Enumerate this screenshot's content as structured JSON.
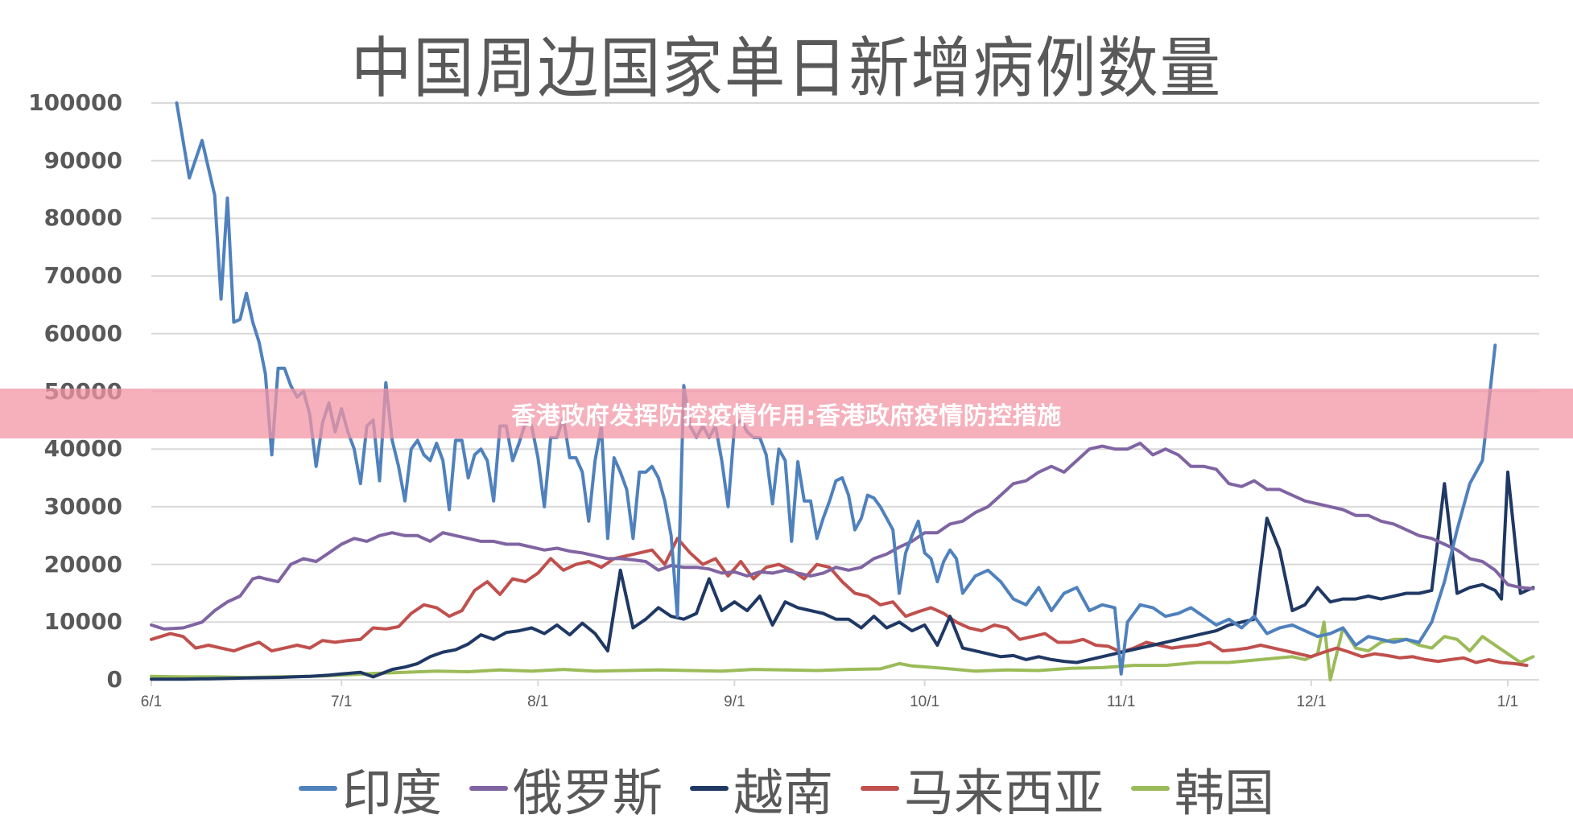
{
  "banner": {
    "text": "香港政府发挥防控疫情作用:香港政府疫情防控措施"
  },
  "chart_data": {
    "type": "line",
    "title": "中国周边国家单日新增病例数量",
    "xlabel": "",
    "ylabel": "",
    "ylim": [
      0,
      100000
    ],
    "yticks": [
      "0",
      "10000",
      "20000",
      "30000",
      "40000",
      "50000",
      "60000",
      "70000",
      "80000",
      "90000",
      "100000"
    ],
    "xticks": [
      "6/1",
      "7/1",
      "8/1",
      "9/1",
      "10/1",
      "11/1",
      "12/1",
      "1/1"
    ],
    "xtick_days": [
      0,
      30,
      61,
      92,
      122,
      153,
      183,
      214
    ],
    "grid": true,
    "legend_position": "bottom",
    "series": [
      {
        "name": "印度",
        "color": "#4f81bd",
        "days": [
          4,
          6,
          8,
          10,
          11,
          12,
          13,
          14,
          15,
          16,
          17,
          18,
          19,
          20,
          21,
          22,
          23,
          24,
          25,
          26,
          27,
          28,
          29,
          30,
          31,
          32,
          33,
          34,
          35,
          36,
          37,
          38,
          39,
          40,
          41,
          42,
          43,
          44,
          45,
          46,
          47,
          48,
          49,
          50,
          51,
          52,
          53,
          54,
          55,
          56,
          57,
          58,
          59,
          60,
          61,
          62,
          63,
          64,
          65,
          66,
          67,
          68,
          69,
          70,
          71,
          72,
          73,
          74,
          75,
          76,
          77,
          78,
          79,
          80,
          81,
          82,
          83,
          84,
          85,
          86,
          87,
          88,
          89,
          90,
          91,
          92,
          93,
          94,
          95,
          96,
          97,
          98,
          99,
          100,
          101,
          102,
          103,
          104,
          105,
          106,
          107,
          108,
          109,
          110,
          111,
          112,
          113,
          114,
          115,
          116,
          117,
          118,
          119,
          120,
          121,
          122,
          123,
          124,
          125,
          126,
          127,
          128,
          130,
          132,
          134,
          136,
          138,
          140,
          142,
          144,
          146,
          148,
          150,
          152,
          153,
          154,
          156,
          158,
          160,
          162,
          164,
          166,
          168,
          170,
          172,
          174,
          176,
          178,
          180,
          182,
          184,
          186,
          188,
          190,
          192,
          194,
          196,
          198,
          200,
          202,
          204,
          206,
          208,
          210,
          212,
          214,
          216,
          218,
          219
        ],
        "values": [
          100000,
          87000,
          93500,
          84000,
          66000,
          83500,
          62000,
          62500,
          67000,
          62000,
          58500,
          53000,
          39000,
          54000,
          54000,
          51000,
          49000,
          50000,
          46000,
          37000,
          44500,
          48000,
          43000,
          47000,
          43000,
          40000,
          34000,
          44000,
          45000,
          34500,
          51500,
          41500,
          37000,
          31000,
          40000,
          41500,
          39000,
          38000,
          41000,
          38000,
          29500,
          41500,
          41500,
          35000,
          39000,
          40000,
          38000,
          31000,
          44000,
          44000,
          38000,
          41000,
          44500,
          44000,
          38500,
          30000,
          42000,
          42000,
          45500,
          38500,
          38500,
          36000,
          27500,
          38000,
          44000,
          24500,
          38500,
          36000,
          33000,
          24500,
          36000,
          36000,
          37000,
          35000,
          31000,
          25000,
          11000,
          51000,
          44000,
          42000,
          44000,
          42000,
          44000,
          38000,
          30000,
          44000,
          45000,
          43000,
          42000,
          42000,
          39000,
          30500,
          40000,
          38000,
          24000,
          37800,
          31000,
          31000,
          24500,
          28000,
          31000,
          34500,
          35000,
          32000,
          26000,
          28000,
          32000,
          31500,
          30000,
          28000,
          26000,
          15000,
          22000,
          25000,
          27500,
          22000,
          21000,
          17000,
          20500,
          22500,
          21000,
          15000,
          18000,
          19000,
          17000,
          14000,
          13000,
          16000,
          12000,
          15000,
          16000,
          12000,
          13000,
          12500,
          1000,
          10000,
          13000,
          12500,
          11000,
          11500,
          12500,
          11000,
          9500,
          10500,
          9000,
          11000,
          8000,
          9000,
          9500,
          8500,
          7500,
          8000,
          9000,
          6000,
          7500,
          7000,
          6500,
          7000,
          6500,
          10000,
          17000,
          26000,
          34000,
          38000,
          58000
        ]
      },
      {
        "name": "俄罗斯",
        "color": "#8064a2",
        "days": [
          0,
          2,
          5,
          8,
          10,
          12,
          14,
          16,
          17,
          18,
          20,
          22,
          24,
          26,
          28,
          30,
          32,
          34,
          36,
          38,
          40,
          42,
          44,
          46,
          48,
          50,
          52,
          54,
          56,
          58,
          60,
          62,
          64,
          66,
          68,
          70,
          72,
          74,
          76,
          78,
          80,
          82,
          84,
          86,
          88,
          90,
          92,
          94,
          96,
          98,
          100,
          102,
          104,
          106,
          108,
          110,
          112,
          114,
          116,
          118,
          120,
          122,
          124,
          126,
          128,
          130,
          132,
          134,
          136,
          138,
          140,
          142,
          144,
          146,
          148,
          150,
          152,
          154,
          156,
          158,
          160,
          162,
          164,
          166,
          168,
          170,
          172,
          174,
          176,
          178,
          180,
          182,
          184,
          186,
          188,
          190,
          192,
          194,
          196,
          198,
          200,
          202,
          204,
          206,
          208,
          210,
          212,
          214,
          216,
          218
        ],
        "values": [
          9500,
          8800,
          9000,
          10000,
          12000,
          13500,
          14500,
          17500,
          17800,
          17500,
          17000,
          20000,
          21000,
          20500,
          22000,
          23500,
          24500,
          24000,
          25000,
          25500,
          25000,
          25000,
          24000,
          25500,
          25000,
          24500,
          24000,
          24000,
          23500,
          23500,
          23000,
          22500,
          22800,
          22300,
          22000,
          21500,
          21000,
          21000,
          20800,
          20500,
          19000,
          19800,
          19500,
          19500,
          19200,
          18500,
          18700,
          18000,
          18700,
          18500,
          19000,
          18500,
          18000,
          18500,
          19500,
          19000,
          19500,
          21000,
          21800,
          23000,
          24000,
          25500,
          25500,
          27000,
          27500,
          29000,
          30000,
          32000,
          34000,
          34500,
          36000,
          37000,
          36000,
          38000,
          40000,
          40500,
          40000,
          40000,
          41000,
          39000,
          40000,
          39000,
          37000,
          37000,
          36500,
          34000,
          33500,
          34500,
          33000,
          33000,
          32000,
          31000,
          30500,
          30000,
          29500,
          28500,
          28500,
          27500,
          27000,
          26000,
          25000,
          24500,
          23500,
          22500,
          21000,
          20500,
          19000,
          16500,
          16000,
          15800
        ]
      },
      {
        "name": "越南",
        "color": "#1f3864",
        "days": [
          0,
          5,
          10,
          15,
          20,
          25,
          28,
          30,
          33,
          35,
          38,
          40,
          42,
          44,
          46,
          48,
          50,
          52,
          54,
          56,
          58,
          60,
          62,
          64,
          66,
          68,
          70,
          72,
          74,
          76,
          78,
          80,
          82,
          84,
          86,
          88,
          90,
          92,
          94,
          96,
          98,
          100,
          102,
          104,
          106,
          108,
          110,
          112,
          114,
          116,
          118,
          120,
          122,
          124,
          126,
          128,
          130,
          132,
          134,
          136,
          138,
          140,
          142,
          144,
          146,
          148,
          150,
          152,
          154,
          156,
          158,
          160,
          162,
          164,
          166,
          168,
          170,
          172,
          174,
          176,
          178,
          180,
          182,
          184,
          186,
          188,
          190,
          192,
          194,
          196,
          198,
          200,
          202,
          204,
          206,
          208,
          210,
          212,
          213,
          214,
          216,
          218
        ],
        "values": [
          100,
          100,
          200,
          300,
          400,
          600,
          800,
          1000,
          1300,
          500,
          1800,
          2200,
          2800,
          4000,
          4800,
          5200,
          6200,
          7800,
          7000,
          8200,
          8500,
          9000,
          8000,
          9500,
          7800,
          9800,
          8000,
          5000,
          19000,
          9000,
          10500,
          12500,
          11000,
          10500,
          11500,
          17500,
          12000,
          13500,
          12000,
          14500,
          9500,
          13500,
          12500,
          12000,
          11500,
          10500,
          10500,
          9000,
          11000,
          9000,
          10000,
          8500,
          9500,
          6000,
          11000,
          5500,
          5000,
          4500,
          4000,
          4200,
          3500,
          4000,
          3500,
          3200,
          3000,
          3500,
          4000,
          4500,
          5000,
          5500,
          6000,
          6500,
          7000,
          7500,
          8000,
          8500,
          9500,
          10000,
          10500,
          28000,
          22500,
          12000,
          13000,
          16000,
          13500,
          14000,
          14000,
          14500,
          14000,
          14500,
          15000,
          15000,
          15500,
          34000,
          15000,
          16000,
          16500,
          15500,
          14000,
          36000,
          15000,
          16000,
          15500
        ]
      },
      {
        "name": "马来西亚",
        "color": "#c0504d",
        "days": [
          0,
          3,
          5,
          7,
          9,
          11,
          13,
          15,
          17,
          19,
          21,
          23,
          25,
          27,
          29,
          31,
          33,
          35,
          37,
          39,
          41,
          43,
          45,
          47,
          49,
          51,
          53,
          55,
          57,
          59,
          61,
          63,
          65,
          67,
          69,
          71,
          73,
          75,
          77,
          79,
          81,
          83,
          85,
          87,
          89,
          91,
          93,
          95,
          97,
          99,
          101,
          103,
          105,
          107,
          109,
          111,
          113,
          115,
          117,
          119,
          121,
          123,
          125,
          127,
          129,
          131,
          133,
          135,
          137,
          139,
          141,
          143,
          145,
          147,
          149,
          151,
          153,
          155,
          157,
          159,
          161,
          163,
          165,
          167,
          169,
          171,
          173,
          175,
          177,
          179,
          181,
          183,
          185,
          187,
          189,
          191,
          193,
          195,
          197,
          199,
          201,
          203,
          205,
          207,
          209,
          211,
          213,
          215,
          217
        ],
        "values": [
          7000,
          8000,
          7500,
          5500,
          6000,
          5500,
          5000,
          5800,
          6500,
          5000,
          5500,
          6000,
          5500,
          6800,
          6500,
          6800,
          7000,
          9000,
          8800,
          9200,
          11500,
          13000,
          12500,
          11000,
          12000,
          15500,
          17000,
          14800,
          17500,
          17000,
          18500,
          21000,
          19000,
          20000,
          20500,
          19500,
          21000,
          21500,
          22000,
          22500,
          20000,
          24500,
          22000,
          20000,
          21000,
          18000,
          20500,
          17500,
          19500,
          20000,
          19000,
          17500,
          20000,
          19500,
          17000,
          15000,
          14500,
          13000,
          13500,
          11000,
          11800,
          12500,
          11500,
          10000,
          9000,
          8500,
          9500,
          9000,
          7000,
          7500,
          8000,
          6500,
          6500,
          7000,
          6000,
          5800,
          4800,
          5500,
          6500,
          6000,
          5500,
          5800,
          6000,
          6500,
          5000,
          5200,
          5500,
          6000,
          5500,
          5000,
          4500,
          4000,
          4800,
          5500,
          4800,
          4000,
          4500,
          4200,
          3800,
          4000,
          3500,
          3200,
          3500,
          3800,
          3000,
          3500,
          3000,
          2800,
          2500
        ]
      },
      {
        "name": "韩国",
        "color": "#9bbb59",
        "days": [
          0,
          5,
          10,
          15,
          20,
          25,
          30,
          35,
          40,
          45,
          50,
          55,
          60,
          65,
          70,
          75,
          80,
          85,
          90,
          95,
          100,
          105,
          110,
          115,
          118,
          120,
          125,
          130,
          135,
          140,
          145,
          150,
          155,
          160,
          165,
          170,
          175,
          180,
          182,
          184,
          185,
          186,
          188,
          190,
          192,
          194,
          196,
          198,
          200,
          202,
          204,
          206,
          208,
          210,
          212,
          214,
          216,
          218
        ],
        "values": [
          600,
          500,
          500,
          400,
          500,
          600,
          800,
          1100,
          1300,
          1500,
          1400,
          1700,
          1500,
          1800,
          1500,
          1600,
          1700,
          1600,
          1500,
          1800,
          1700,
          1600,
          1800,
          1900,
          2800,
          2400,
          2000,
          1500,
          1700,
          1600,
          2000,
          2100,
          2500,
          2500,
          3000,
          3000,
          3500,
          4000,
          3500,
          4500,
          10000,
          0,
          9000,
          5500,
          5000,
          6500,
          7000,
          7000,
          6000,
          5500,
          7500,
          7000,
          5000,
          7500,
          6000,
          4500,
          3000,
          4000
        ]
      }
    ]
  },
  "legend": {
    "items": [
      {
        "label": "印度",
        "color": "#4f81bd"
      },
      {
        "label": "俄罗斯",
        "color": "#8064a2"
      },
      {
        "label": "越南",
        "color": "#1f3864"
      },
      {
        "label": "马来西亚",
        "color": "#c0504d"
      },
      {
        "label": "韩国",
        "color": "#9bbb59"
      }
    ]
  }
}
